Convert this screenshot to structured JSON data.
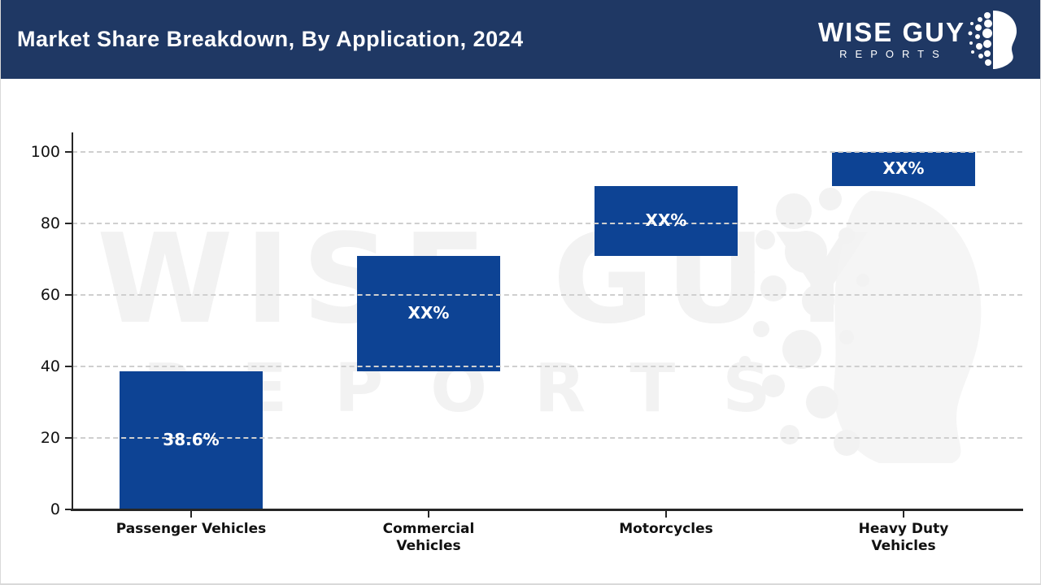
{
  "header": {
    "title": "Market Share Breakdown, By Application, 2024",
    "logo": {
      "line1": "WISE GUY",
      "line2": "REPORTS"
    }
  },
  "watermark": {
    "line1": "WISE GUY",
    "line2": "REPORTS"
  },
  "colors": {
    "header_bg": "#1f3864",
    "bar": "#0d4394",
    "grid": "#cfcfcf",
    "axis": "#262626",
    "watermark": "#f2f2f2"
  },
  "chart_data": {
    "type": "bar",
    "subtype": "waterfall",
    "title": "Market Share Breakdown, By Application, 2024",
    "xlabel": "",
    "ylabel": "",
    "ylim": [
      0,
      105
    ],
    "yticks": [
      0,
      20,
      40,
      60,
      80,
      100
    ],
    "grid": true,
    "legend": false,
    "bar_color": "#0d4394",
    "categories": [
      "Passenger Vehicles",
      "Commercial Vehicles",
      "Motorcycles",
      "Heavy Duty Vehicles"
    ],
    "segments": [
      {
        "label": "Passenger Vehicles",
        "display_label": "Passenger Vehicles",
        "start": 0,
        "end": 38.6,
        "value": 38.6,
        "value_label": "38.6%"
      },
      {
        "label": "Commercial Vehicles",
        "display_label": "Commercial\nVehicles",
        "start": 38.6,
        "end": 71.0,
        "value": 32.4,
        "value_label": "XX%"
      },
      {
        "label": "Motorcycles",
        "display_label": "Motorcycles",
        "start": 71.0,
        "end": 90.5,
        "value": 19.5,
        "value_label": "XX%"
      },
      {
        "label": "Heavy Duty Vehicles",
        "display_label": "Heavy Duty\nVehicles",
        "start": 90.5,
        "end": 100.0,
        "value": 9.5,
        "value_label": "XX%"
      }
    ]
  }
}
